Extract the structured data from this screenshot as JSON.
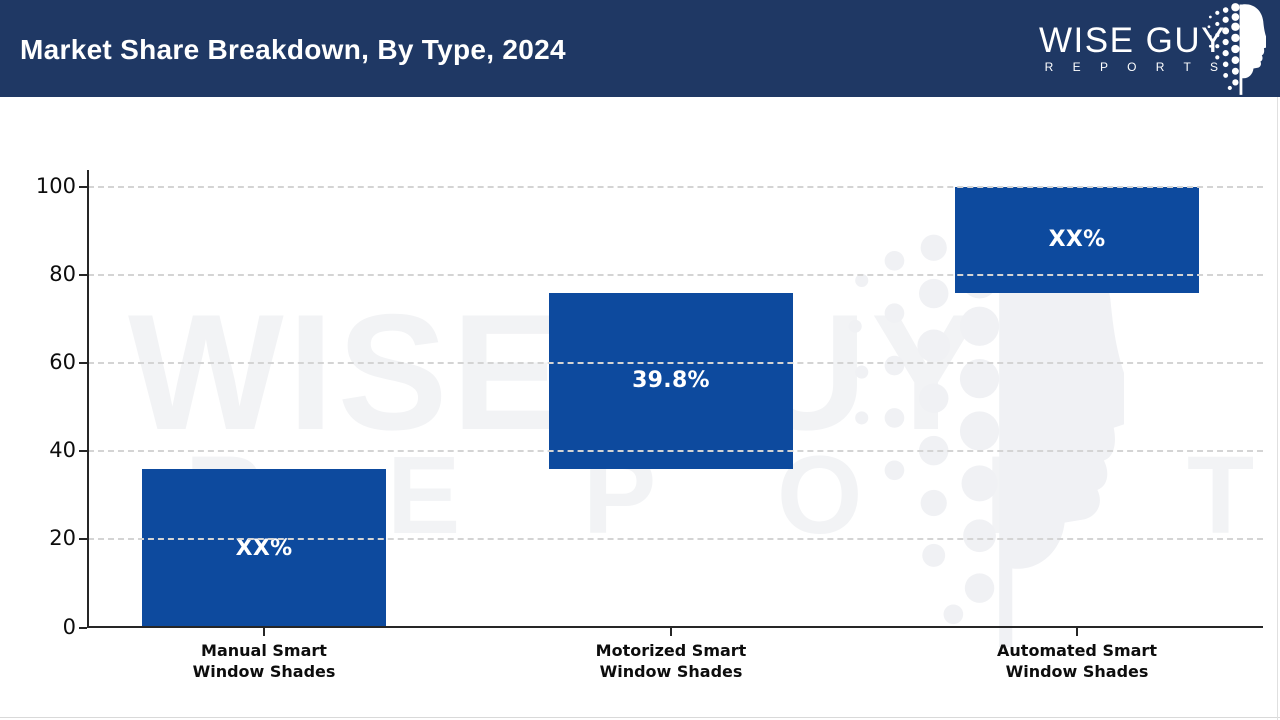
{
  "header": {
    "title": "Market Share Breakdown, By Type, 2024",
    "logo": {
      "wordmark": "WISE GUY",
      "subtext": "R E P O R T S"
    }
  },
  "watermark": {
    "line1": "WISE GUY",
    "line2": "R E P O R T S"
  },
  "chart_data": {
    "type": "bar",
    "subtype": "waterfall-segments",
    "title": "Market Share Breakdown, By Type, 2024",
    "categories": [
      {
        "line1": "Manual Smart",
        "line2": "Window Shades"
      },
      {
        "line1": "Motorized Smart",
        "line2": "Window Shades"
      },
      {
        "line1": "Automated Smart",
        "line2": "Window Shades"
      }
    ],
    "segments": [
      {
        "from": 0,
        "to": 36,
        "label": "XX%"
      },
      {
        "from": 36,
        "to": 75.8,
        "label": "39.8%"
      },
      {
        "from": 75.8,
        "to": 100,
        "label": "XX%"
      }
    ],
    "ylim": [
      0,
      100
    ],
    "yticks": [
      0,
      20,
      40,
      60,
      80,
      100
    ],
    "xlabel": "",
    "ylabel": "",
    "grid": "horizontal-dashed",
    "legend": "none",
    "bar_color": "#0d4a9e"
  },
  "colors": {
    "header_bg": "#1f3864",
    "bar": "#0d4a9e",
    "grid": "#d4d4d4",
    "axis": "#262626",
    "tick_text": "#0d0d0d",
    "watermark": "#f2f3f5"
  }
}
